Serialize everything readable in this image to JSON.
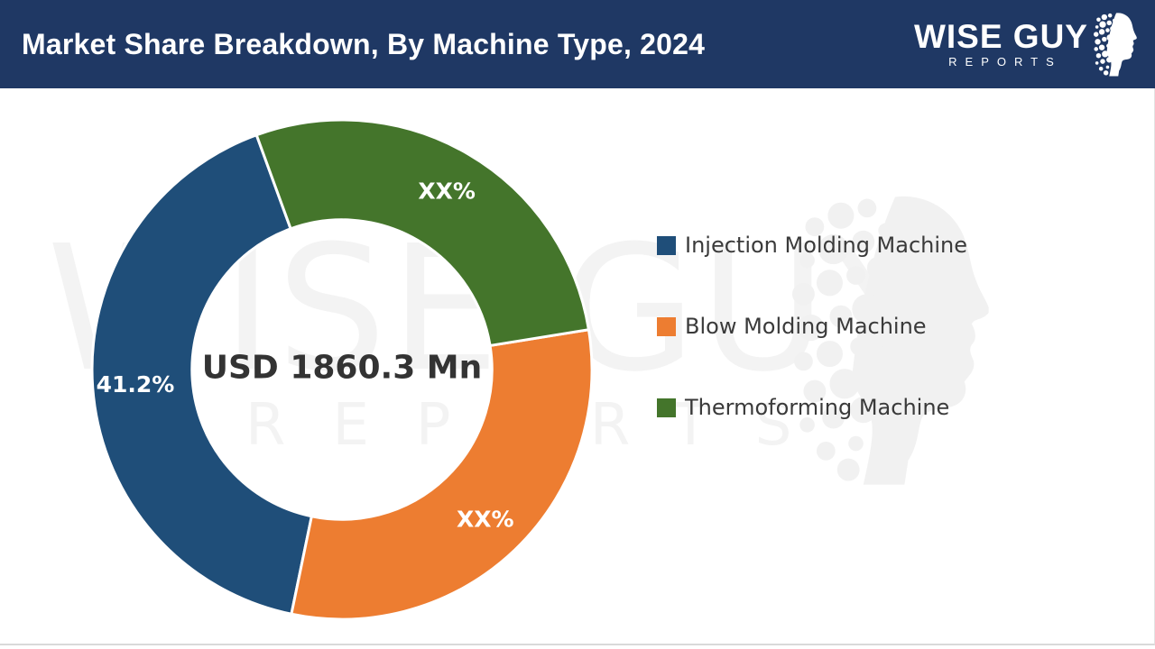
{
  "header": {
    "title": "Market Share Breakdown, By Machine Type, 2024",
    "bg_color": "#1F3864",
    "logo": {
      "line1": "WISE GUY",
      "line2": "REPORTS"
    }
  },
  "watermark": {
    "line1": "WISE GUY",
    "line2": "REPORTS"
  },
  "chart_data": {
    "type": "pie",
    "subtype": "donut",
    "title": "Market Share Breakdown, By Machine Type, 2024",
    "center_label": "USD 1860.3 Mn",
    "start_angle_deg": 110,
    "direction": "counterclockwise",
    "inner_radius_ratio": 0.6,
    "legend_position": "right",
    "segments": [
      {
        "name": "Injection Molding Machine",
        "value": 41.2,
        "label": "41.2%",
        "color": "#1F4E79"
      },
      {
        "name": "Blow Molding Machine",
        "value": 30.8,
        "label": "XX%",
        "color": "#ED7D31"
      },
      {
        "name": "Thermoforming Machine",
        "value": 28.0,
        "label": "XX%",
        "color": "#44752B"
      }
    ]
  }
}
